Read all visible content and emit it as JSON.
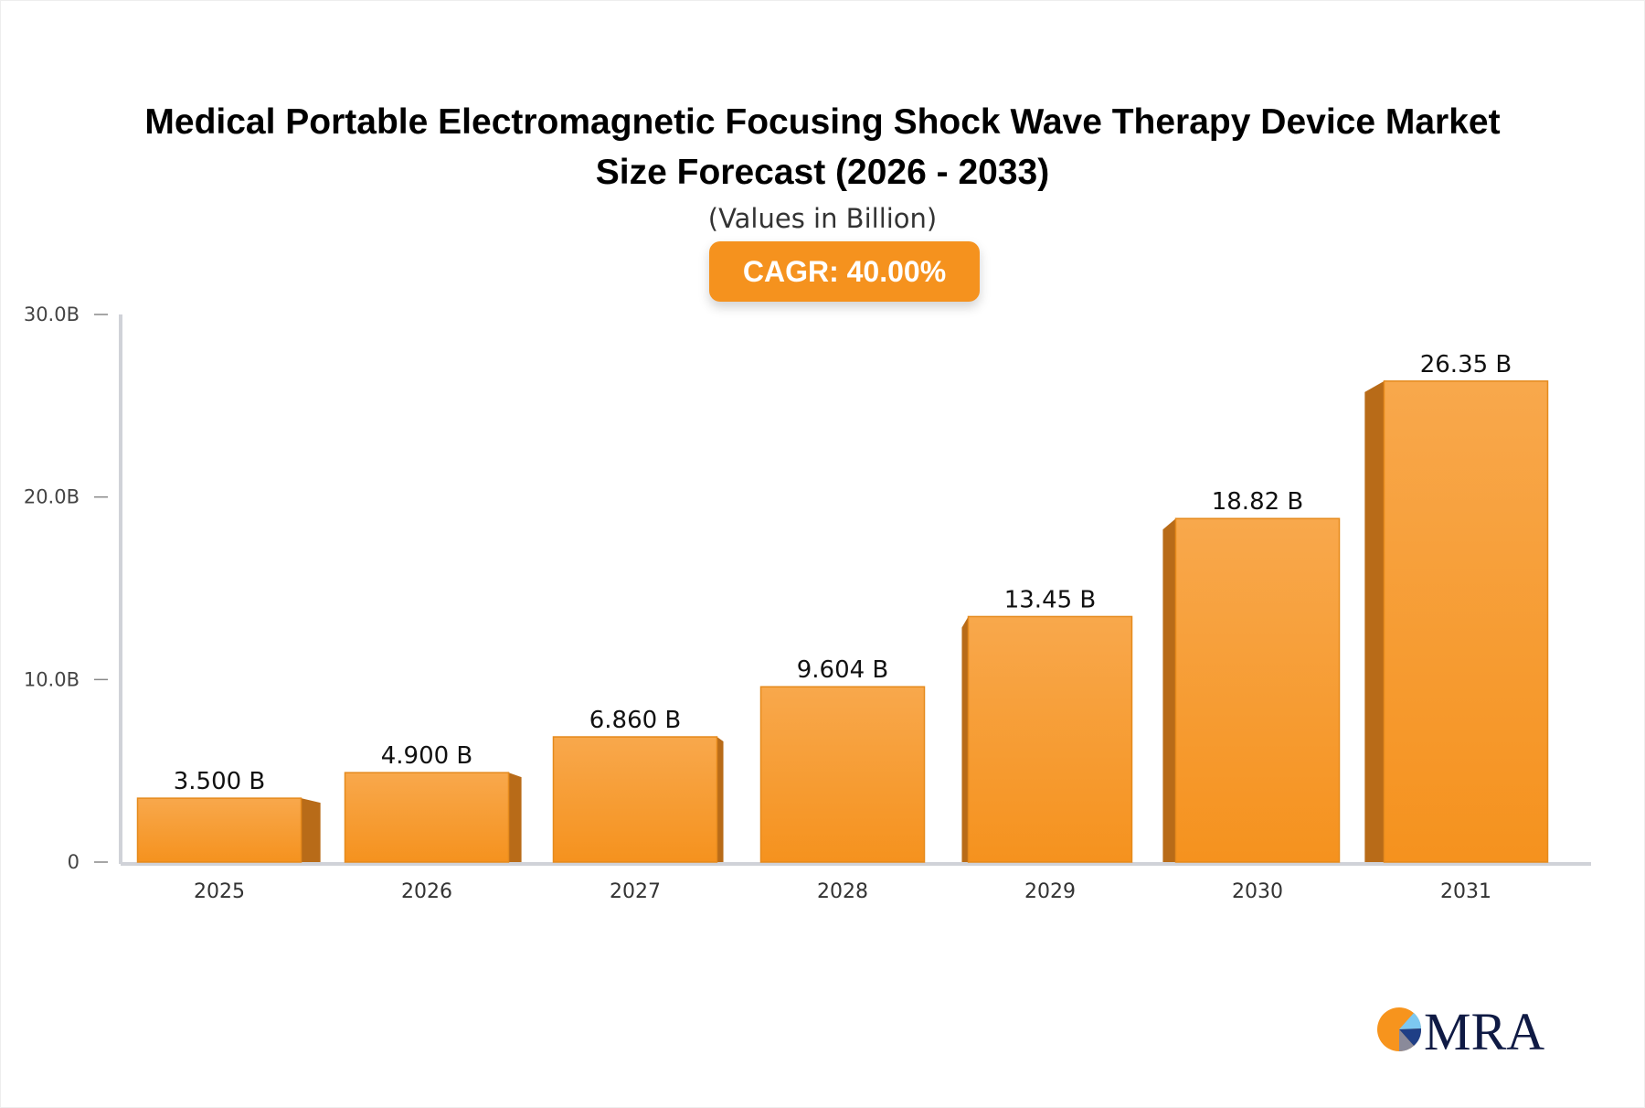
{
  "chart_data": {
    "type": "bar",
    "title": "Medical Portable Electromagnetic Focusing Shock Wave Therapy Device Market Size Forecast (2026 - 2033)",
    "title_lines": [
      "Medical Portable Electromagnetic Focusing Shock Wave Therapy Device Market",
      "Size Forecast (2026 - 2033)"
    ],
    "subtitle": "(Values in Billion)",
    "badge": "CAGR: 40.00%",
    "categories": [
      "2025",
      "2026",
      "2027",
      "2028",
      "2029",
      "2030",
      "2031"
    ],
    "values": [
      3.5,
      4.9,
      6.86,
      9.604,
      13.45,
      18.82,
      26.35
    ],
    "data_labels": [
      "3.500 B",
      "4.900 B",
      "6.860 B",
      "9.604 B",
      "13.45 B",
      "18.82 B",
      "26.35 B"
    ],
    "ylim": [
      0,
      30
    ],
    "yticks": [
      0,
      10,
      20,
      30
    ],
    "ytick_labels": [
      "0",
      "10.0B",
      "20.0B",
      "30.0B"
    ],
    "xlabel": "",
    "ylabel": "",
    "grid": false,
    "colors": {
      "bar": "#f5921e",
      "bar_side": "#b86b18",
      "axis": "#d0d2d8"
    }
  },
  "logo": {
    "text": "MRA"
  }
}
